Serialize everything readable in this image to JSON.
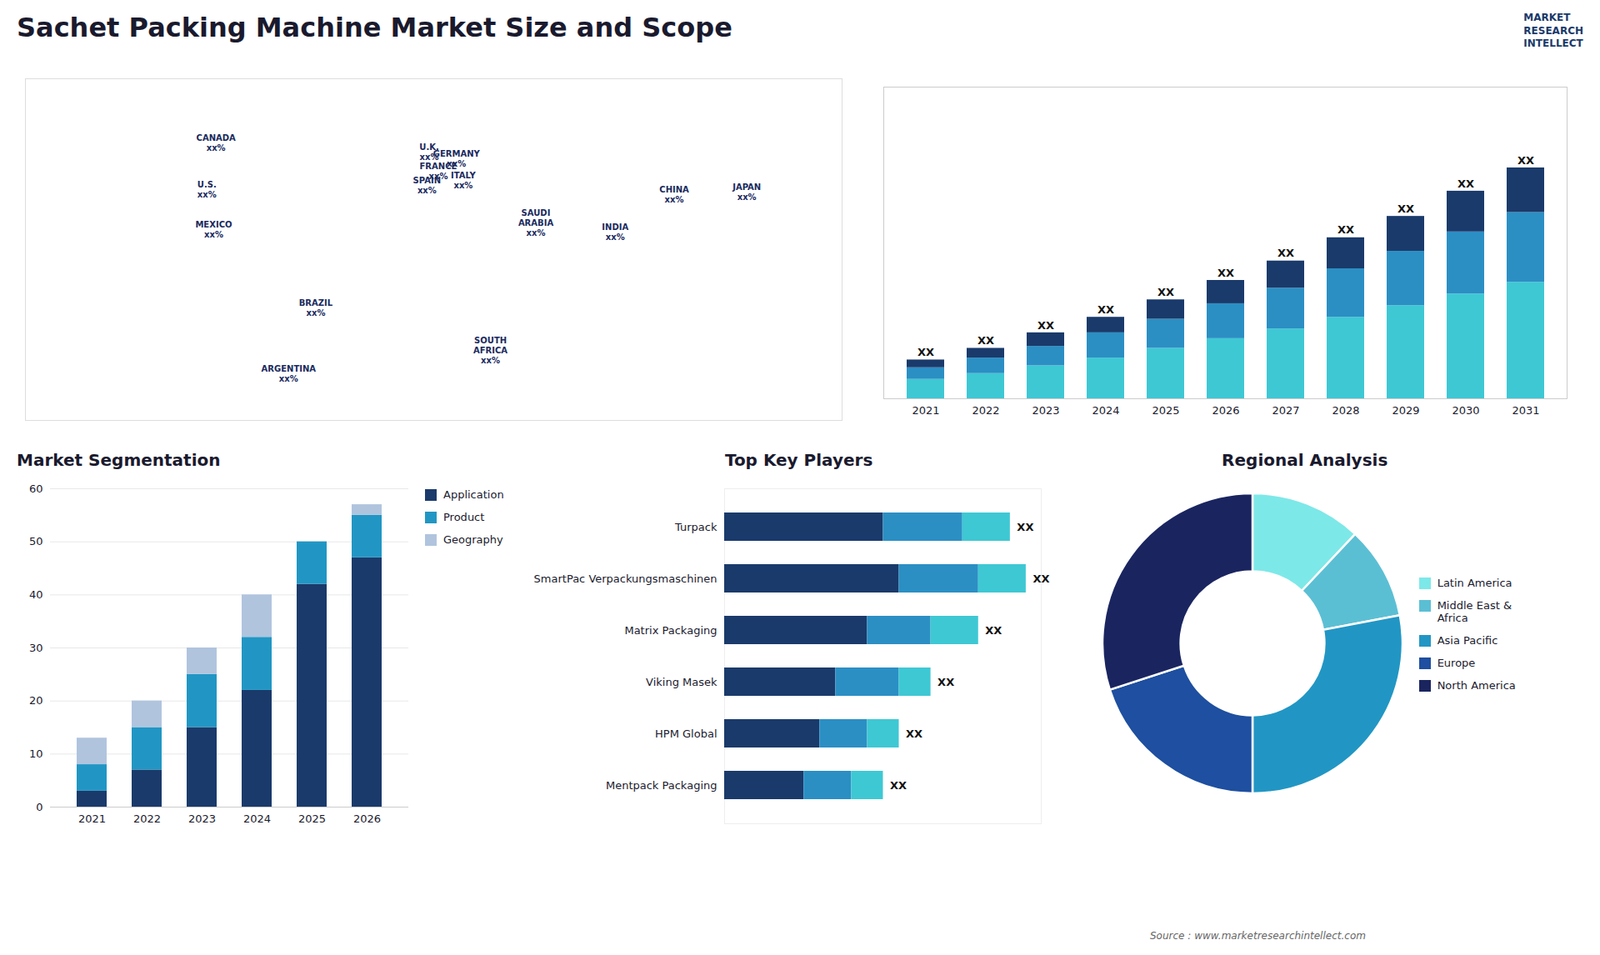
{
  "title": "Sachet Packing Machine Market Size and Scope",
  "annotations": [
    "MARKET",
    "RESEARCH",
    "INTELLECT",
    "Source : www.marketresearchintellect.com"
  ],
  "chart_data": [
    {
      "type": "map",
      "annotations": [
        {
          "text": "U.S.\nxx%",
          "x": -100,
          "y": 38
        },
        {
          "text": "CANADA\nxx%",
          "x": -96,
          "y": 58
        },
        {
          "text": "MEXICO\nxx%",
          "x": -97,
          "y": 21
        },
        {
          "text": "BRAZIL\nxx%",
          "x": -52,
          "y": -12
        },
        {
          "text": "ARGENTINA\nxx%",
          "x": -64,
          "y": -40
        },
        {
          "text": "U.K.\nxx%",
          "x": -2,
          "y": 54
        },
        {
          "text": "FRANCE\nxx%",
          "x": 2,
          "y": 46
        },
        {
          "text": "SPAIN\nxx%",
          "x": -3,
          "y": 40
        },
        {
          "text": "GERMANY\nxx%",
          "x": 10,
          "y": 51
        },
        {
          "text": "ITALY\nxx%",
          "x": 13,
          "y": 42
        },
        {
          "text": "SAUDI\nARABIA\nxx%",
          "x": 45,
          "y": 24
        },
        {
          "text": "SOUTH\nAFRICA\nxx%",
          "x": 25,
          "y": -30
        },
        {
          "text": "INDIA\nxx%",
          "x": 80,
          "y": 20
        },
        {
          "text": "CHINA\nxx%",
          "x": 106,
          "y": 36
        },
        {
          "text": "JAPAN\nxx%",
          "x": 138,
          "y": 37
        }
      ],
      "xlim": [
        -180,
        180
      ],
      "ylim": [
        -60,
        85
      ],
      "tick_labels": false
    },
    {
      "type": "bar",
      "stacked": true,
      "categories": [
        2021,
        2022,
        2023,
        2024,
        2025,
        2026,
        2027,
        2028,
        2029,
        2030,
        2031
      ],
      "series": [
        {
          "color": "#3ec8d4",
          "values": [
            1.0,
            1.3,
            1.7,
            2.1,
            2.6,
            3.1,
            3.6,
            4.2,
            4.8,
            5.4,
            6.0
          ]
        },
        {
          "color": "#2b8fc4",
          "values": [
            0.6,
            0.8,
            1.0,
            1.3,
            1.5,
            1.8,
            2.1,
            2.5,
            2.8,
            3.2,
            3.6
          ]
        },
        {
          "color": "#1a3a6b",
          "values": [
            0.4,
            0.5,
            0.7,
            0.8,
            1.0,
            1.2,
            1.4,
            1.6,
            1.8,
            2.1,
            2.3
          ]
        }
      ],
      "data_labels": true,
      "value_labels": [
        "XX",
        "XX",
        "XX",
        "XX",
        "XX",
        "XX",
        "XX",
        "XX",
        "XX",
        "XX",
        "XX"
      ],
      "ylim": [
        0,
        16.065
      ],
      "tick_labels": "x",
      "grid": false
    },
    {
      "type": "bar",
      "stacked": true,
      "title": "Market Segmentation",
      "categories": [
        2021,
        2022,
        2023,
        2024,
        2025,
        2026
      ],
      "series": [
        {
          "name": "Application",
          "color": "#1a3a6b",
          "values": [
            3,
            7,
            15,
            22,
            42,
            47
          ]
        },
        {
          "name": "Product",
          "color": "#2196c4",
          "values": [
            5,
            8,
            10,
            10,
            8,
            8
          ]
        },
        {
          "name": "Geography",
          "color": "#b0c4de",
          "values": [
            5,
            5,
            5,
            8,
            0,
            2
          ]
        }
      ],
      "ylim": [
        0,
        60
      ],
      "yticks": [
        0,
        10,
        20,
        30,
        40,
        50,
        60
      ],
      "grid": true,
      "legend": "right"
    },
    {
      "type": "bar",
      "orientation": "horizontal",
      "stacked": true,
      "title": "Top Key Players",
      "categories": [
        "Turpack",
        "SmartPac Verpackungsmaschinen",
        "Matrix Packaging",
        "Viking Masek",
        "HPM Global",
        "Mentpack Packaging"
      ],
      "series": [
        {
          "color": "#1a3a6b",
          "values": [
            10,
            11,
            9,
            7,
            6,
            5
          ]
        },
        {
          "color": "#2b8fc4",
          "values": [
            5,
            5,
            4,
            4,
            3,
            3
          ]
        },
        {
          "color": "#3ec8d4",
          "values": [
            3,
            3,
            3,
            2,
            2,
            2
          ]
        }
      ],
      "data_labels": true,
      "value_labels": [
        "XX",
        "XX",
        "XX",
        "XX",
        "XX",
        "XX"
      ],
      "xlim": [
        0,
        19.95
      ],
      "tick_labels": "y"
    },
    {
      "type": "donut",
      "title": "Regional Analysis",
      "categories": [
        "Latin America",
        "Middle East &\nAfrica",
        "Asia Pacific",
        "Europe",
        "North America"
      ],
      "values": [
        12,
        10,
        28,
        20,
        30
      ],
      "colors": [
        "#7de8e8",
        "#5bbfd4",
        "#2196c4",
        "#1e4fa0",
        "#1a2560"
      ],
      "legend": "right"
    }
  ]
}
